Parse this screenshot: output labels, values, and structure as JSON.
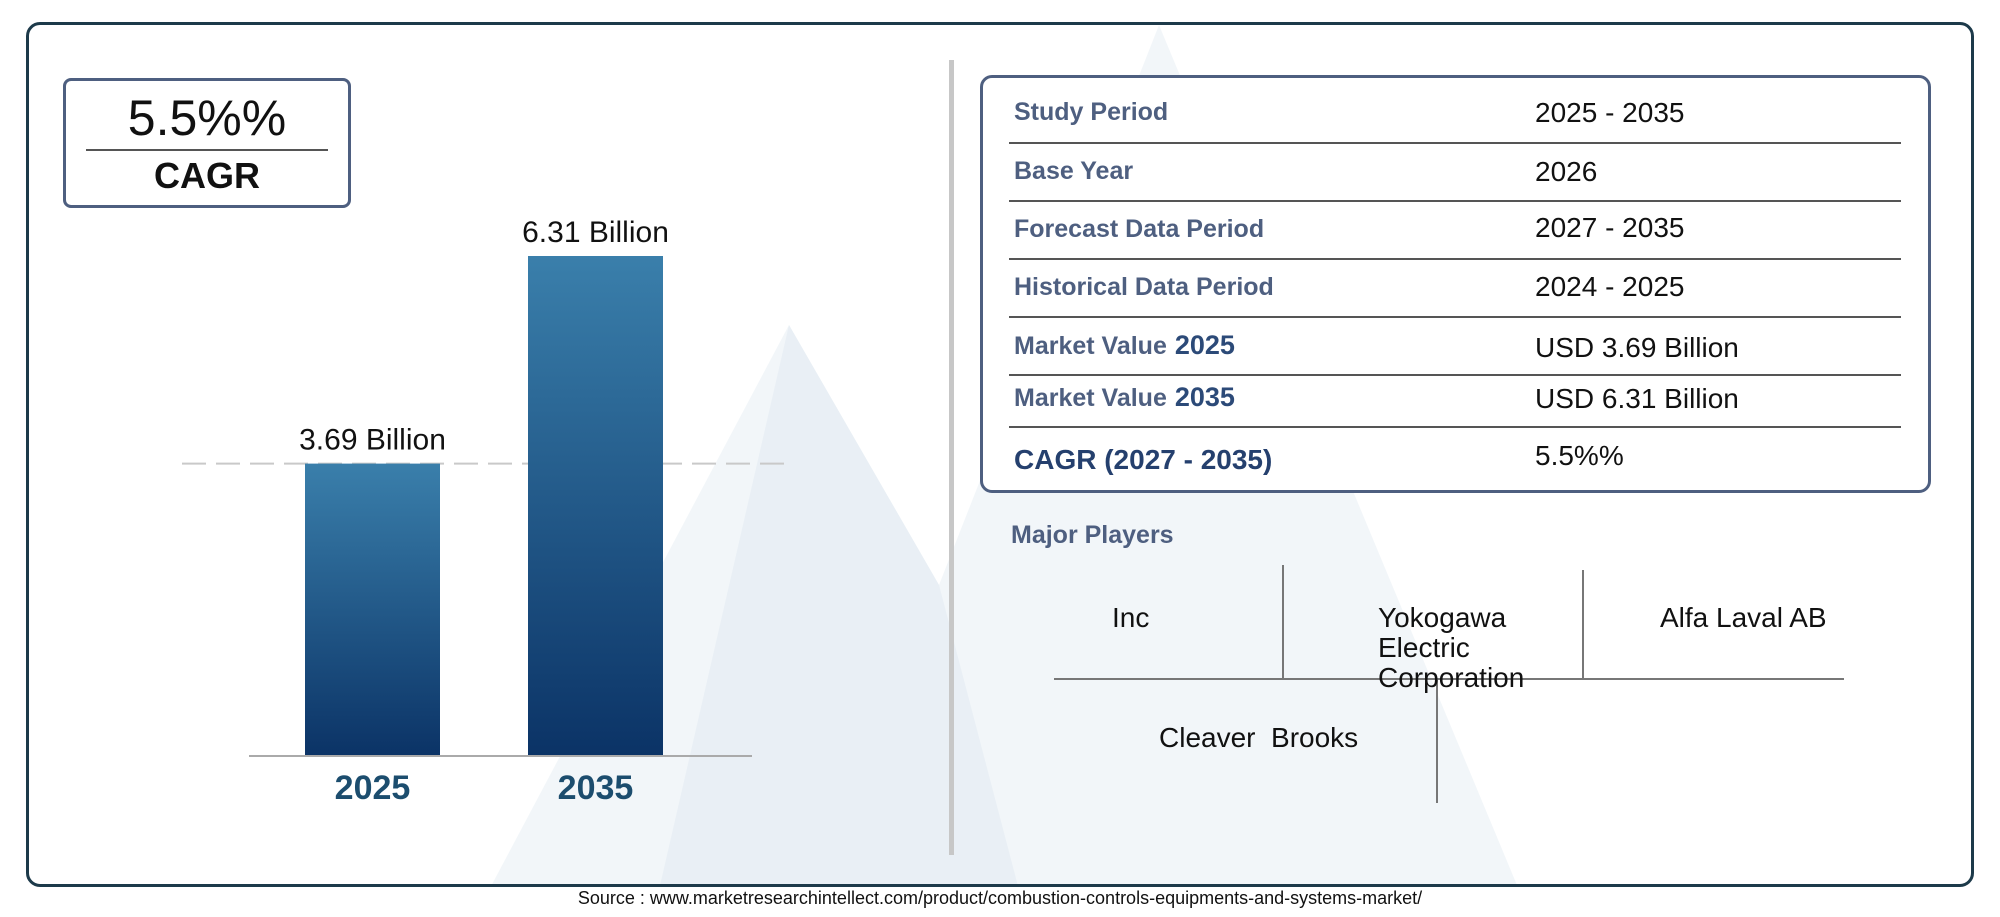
{
  "cagr_box": {
    "value": "5.5%%",
    "label": "CAGR"
  },
  "chart_data": {
    "type": "bar",
    "categories": [
      "2025",
      "2035"
    ],
    "values": [
      3.69,
      6.31
    ],
    "data_labels": [
      "3.69 Billion",
      "6.31 Billion"
    ],
    "title": "",
    "xlabel": "",
    "ylabel": "",
    "ylim": [
      0,
      6.31
    ],
    "grid": false,
    "reference_line": "dashed line at 2025 value",
    "colors": {
      "bar_top": "#3a7fab",
      "bar_bottom": "#0b3366",
      "tick_label": "#1c4d6e"
    }
  },
  "info_table": {
    "rows": [
      {
        "label": "Study Period",
        "year": "",
        "value": "2025 - 2035"
      },
      {
        "label": "Base Year",
        "year": "",
        "value": "2026"
      },
      {
        "label": "Forecast Data Period",
        "year": "",
        "value": "2027 - 2035"
      },
      {
        "label": "Historical Data Period",
        "year": "",
        "value": "2024 - 2025"
      },
      {
        "label": "Market Value",
        "year": "2025",
        "value": "USD 3.69 Billion"
      },
      {
        "label": "Market Value",
        "year": "2035",
        "value": "USD 6.31 Billion"
      },
      {
        "label": "CAGR (2027 - 2035)",
        "year": "",
        "value": "5.5%%"
      }
    ]
  },
  "players": {
    "title": "Major Players",
    "names": [
      "Inc",
      "Yokogawa Electric Corporation",
      "Alfa Laval AB",
      "Cleaver  Brooks"
    ]
  },
  "source": "Source : www.marketresearchintellect.com/product/combustion-controls-equipments-and-systems-market/"
}
